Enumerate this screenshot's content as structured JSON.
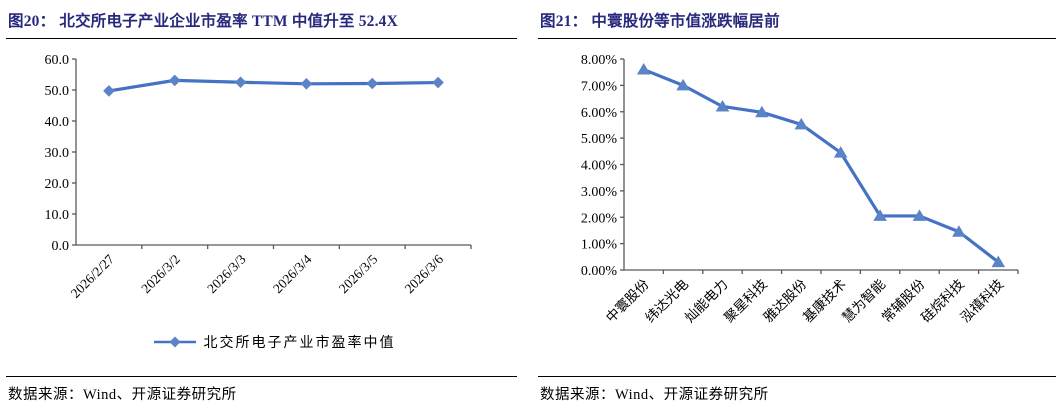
{
  "panels": [
    {
      "figure_label": "图20：",
      "title": "图20： 北交所电子产业企业市盈率 TTM 中值升至 52.4X",
      "source": "数据来源：Wind、开源证券研究所"
    },
    {
      "figure_label": "图21：",
      "title": "图21： 中寰股份等市值涨跌幅居前",
      "source": "数据来源：Wind、开源证券研究所"
    }
  ],
  "colors": {
    "title_navy": "#28287D",
    "series_line": "#4472C4",
    "marker_fill": "#5B84C8",
    "axis_gray": "#595959",
    "text_black": "#000000"
  },
  "chart_data": [
    {
      "type": "line",
      "title": "图20： 北交所电子产业企业市盈率 TTM 中值升至 52.4X",
      "categories": [
        "2026/2/27",
        "2026/3/2",
        "2026/3/3",
        "2026/3/4",
        "2026/3/5",
        "2026/3/6"
      ],
      "series": [
        {
          "name": "北交所电子产业市盈率中值",
          "values": [
            49.7,
            53.1,
            52.5,
            52.0,
            52.1,
            52.4
          ]
        }
      ],
      "xlabel": "",
      "ylabel": "",
      "ylim": [
        0,
        60
      ],
      "ytick_step": 10,
      "y_format": "number1",
      "marker": "diamond",
      "grid": false,
      "legend_position": "bottom",
      "x_tick_rotation": 45
    },
    {
      "type": "line",
      "title": "图21： 中寰股份等市值涨跌幅居前",
      "categories": [
        "中寰股份",
        "纬达光电",
        "灿能电力",
        "聚星科技",
        "雅达股份",
        "基康技术",
        "慧为智能",
        "常辅股份",
        "硅烷科技",
        "泓禧科技"
      ],
      "series": [
        {
          "name": "市值涨跌幅",
          "values": [
            7.6,
            7.0,
            6.2,
            5.98,
            5.52,
            4.45,
            2.05,
            2.05,
            1.45,
            0.3
          ]
        }
      ],
      "xlabel": "",
      "ylabel": "",
      "ylim": [
        0,
        8
      ],
      "ytick_step": 1,
      "y_format": "percent2",
      "marker": "triangle",
      "grid": false,
      "legend_position": "none",
      "x_tick_rotation": 45
    }
  ]
}
